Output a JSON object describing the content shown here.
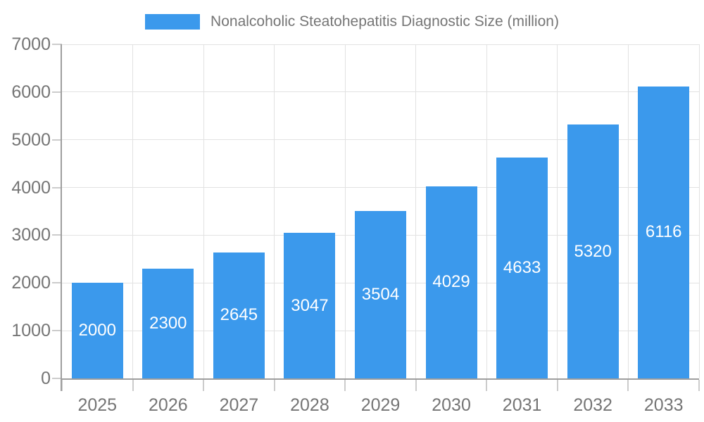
{
  "legend": {
    "label": "Nonalcoholic Steatohepatitis Diagnostic Size (million)"
  },
  "chart_data": {
    "type": "bar",
    "title": "Nonalcoholic Steatohepatitis Diagnostic Size (million)",
    "categories": [
      "2025",
      "2026",
      "2027",
      "2028",
      "2029",
      "2030",
      "2031",
      "2032",
      "2033"
    ],
    "values": [
      2000,
      2300,
      2645,
      3047,
      3504,
      4029,
      4633,
      5320,
      6116
    ],
    "xlabel": "",
    "ylabel": "",
    "ylim": [
      0,
      7000
    ],
    "yticks": [
      0,
      1000,
      2000,
      3000,
      4000,
      5000,
      6000,
      7000
    ],
    "grid": true,
    "legend_position": "top",
    "value_label_position": "inside-center"
  },
  "colors": {
    "bar": "#3B99EC",
    "bar_label": "#FFFFFF",
    "axis_line": "#9E9E9E",
    "gridline": "#E2E2E2",
    "tick": "#CCCCCC",
    "text": "#757575",
    "background": "#FFFFFF"
  }
}
